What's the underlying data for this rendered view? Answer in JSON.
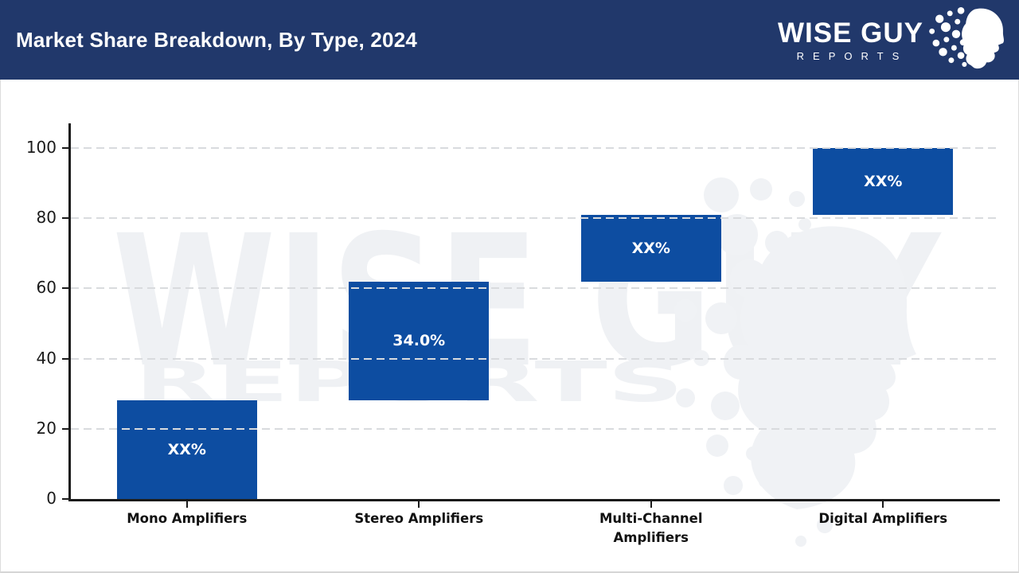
{
  "header": {
    "title": "Market Share Breakdown, By Type, 2024",
    "brand": {
      "name": "WISE GUY",
      "sub": "REPORTS"
    },
    "colors": {
      "background": "#21386b",
      "text": "#ffffff"
    }
  },
  "watermark": {
    "line1": "WISE GUY",
    "line2": "REPORTS",
    "color": "#eff1f4"
  },
  "chart_data": {
    "type": "bar",
    "variant": "floating-segment-waterfall",
    "title": "Market Share Breakdown, By Type, 2024",
    "categories": [
      "Mono Amplifiers",
      "Stereo Amplifiers",
      "Multi-Channel Amplifiers",
      "Digital Amplifiers"
    ],
    "category_lines": [
      [
        "Mono Amplifiers"
      ],
      [
        "Stereo Amplifiers"
      ],
      [
        "Multi-Channel",
        "Amplifiers"
      ],
      [
        "Digital Amplifiers"
      ]
    ],
    "segments": [
      {
        "category": "Mono Amplifiers",
        "start": 0,
        "end": 28,
        "value": 28,
        "label": "XX%"
      },
      {
        "category": "Stereo Amplifiers",
        "start": 28,
        "end": 62,
        "value": 34,
        "label": "34.0%"
      },
      {
        "category": "Multi-Channel Amplifiers",
        "start": 62,
        "end": 81,
        "value": 19,
        "label": "XX%"
      },
      {
        "category": "Digital Amplifiers",
        "start": 81,
        "end": 100,
        "value": 19,
        "label": "XX%"
      }
    ],
    "yticks": [
      0,
      20,
      40,
      60,
      80,
      100
    ],
    "ylim": [
      0,
      107
    ],
    "xlabel": "",
    "ylabel": "",
    "grid": "horizontal-dashed-above-bars",
    "legend": "none",
    "colors": {
      "bar": "#0d4da1",
      "bar_label": "#ffffff",
      "grid": "#d9dbde",
      "axis": "#1a1a1a",
      "tick_label": "#1a1a1a",
      "watermark": "#eff1f4"
    }
  }
}
